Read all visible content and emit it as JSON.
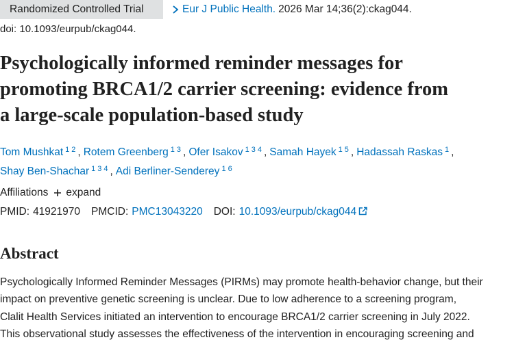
{
  "publication_type": "Randomized Controlled Trial",
  "citation": {
    "journal": "Eur J Public Health.",
    "details": "2026 Mar 14;36(2):ckag044.",
    "doi": "doi: 10.1093/eurpub/ckag044."
  },
  "title_lines": [
    "Psychologically informed reminder messages for",
    "promoting BRCA1/2 carrier screening: evidence from",
    "a large-scale population-based study"
  ],
  "author_lines": [
    [
      {
        "name": "Tom Mushkat",
        "affiliations": [
          1,
          2
        ],
        "punctuation": ","
      },
      {
        "name": "Rotem Greenberg",
        "affiliations": [
          1,
          3
        ],
        "punctuation": ","
      },
      {
        "name": "Ofer Isakov",
        "affiliations": [
          1,
          3,
          4
        ],
        "punctuation": ","
      },
      {
        "name": "Samah Hayek",
        "affiliations": [
          1,
          5
        ],
        "punctuation": ","
      },
      {
        "name": "Hadassah Raskas",
        "affiliations": [
          1
        ],
        "punctuation": ","
      }
    ],
    [
      {
        "name": "Shay Ben-Shachar",
        "affiliations": [
          1,
          3,
          4
        ],
        "punctuation": ","
      },
      {
        "name": "Adi Berliner-Senderey",
        "affiliations": [
          1,
          6
        ]
      }
    ]
  ],
  "affiliations": {
    "label": "Affiliations",
    "expand": "expand"
  },
  "identifiers": [
    {
      "label": "PMID:",
      "value": "41921970"
    },
    {
      "label": "PMCID:",
      "value": "PMC13043220",
      "link": true
    },
    {
      "label": "DOI:",
      "value": "10.1093/eurpub/ckag044",
      "link": true,
      "external": true
    }
  ],
  "abstract": {
    "heading": "Abstract",
    "lines": [
      "Psychologically Informed Reminder Messages (PIRMs) may promote health-behavior change, but their",
      "impact on preventive genetic screening is unclear. Due to low adherence to a screening program,",
      "Clalit Health Services initiated an intervention to encourage BRCA1/2 carrier screening in July 2022.",
      "This observational study assesses the effectiveness of the intervention in encouraging screening and"
    ]
  }
}
